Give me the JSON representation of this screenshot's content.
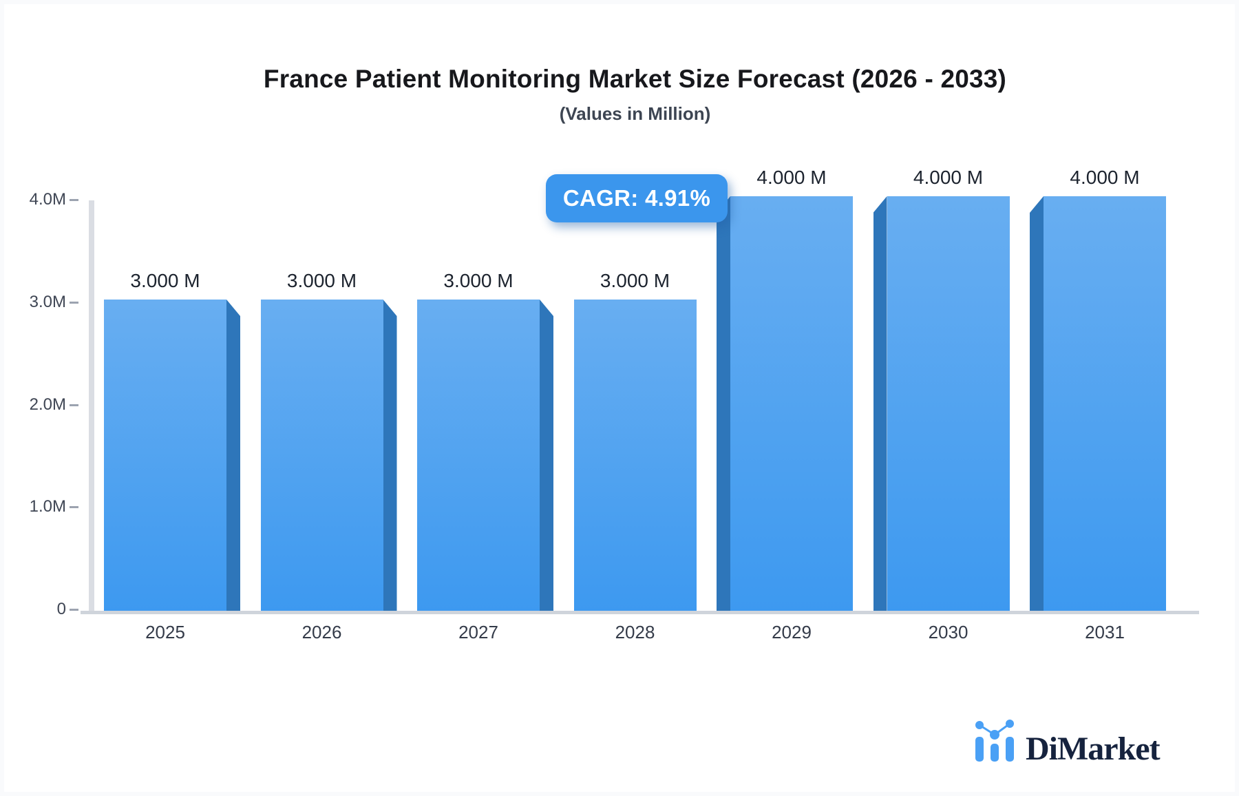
{
  "chart_data": {
    "type": "bar",
    "title": "France Patient Monitoring Market Size Forecast (2026 - 2033)",
    "subtitle": "(Values in Million)",
    "categories": [
      "2025",
      "2026",
      "2027",
      "2028",
      "2029",
      "2030",
      "2031"
    ],
    "values": [
      3.0,
      3.0,
      3.0,
      3.0,
      4.0,
      4.0,
      4.0
    ],
    "value_labels": [
      "3.000 M",
      "3.000 M",
      "3.000 M",
      "3.000 M",
      "4.000 M",
      "4.000 M",
      "4.000 M"
    ],
    "unit": "Million",
    "xlabel": "",
    "ylabel": "",
    "ylim": [
      0,
      4.0
    ],
    "yticks": [
      {
        "value": 0,
        "label": "0"
      },
      {
        "value": 1,
        "label": "1.0M"
      },
      {
        "value": 2,
        "label": "2.0M"
      },
      {
        "value": 3,
        "label": "3.0M"
      },
      {
        "value": 4,
        "label": "4.0M"
      }
    ],
    "grid": false,
    "legend": "none",
    "annotation": "CAGR: 4.91%",
    "colors": {
      "bar_top": "#68aef1",
      "bar_bottom": "#3d99f0",
      "bar_side": "#2e76ba",
      "annotation_bg": "#3b96ed",
      "annotation_text": "#ffffff",
      "axis_line": "#dadde3"
    }
  },
  "branding": {
    "logo_text": "DiMarket",
    "logo_icon": "bar-line-chart-icon",
    "logo_icon_color": "#4aa0f5",
    "logo_text_color": "#16233e"
  }
}
